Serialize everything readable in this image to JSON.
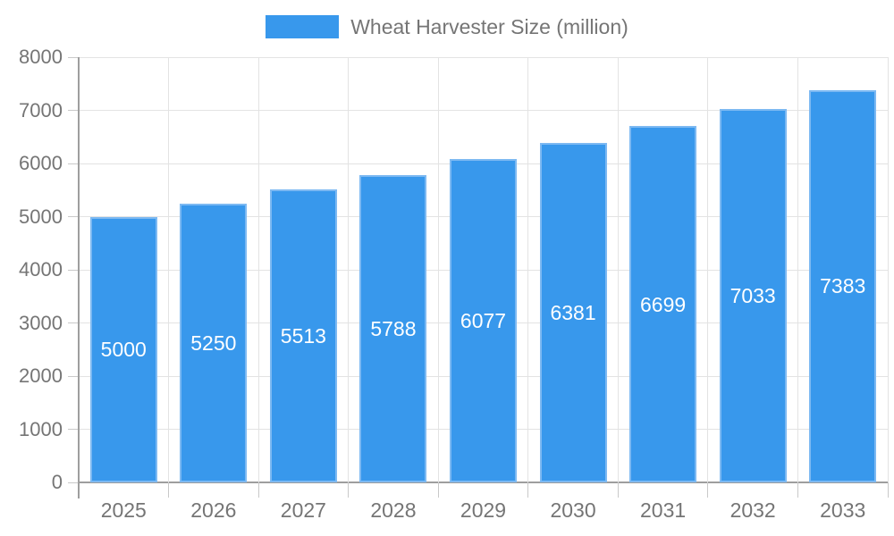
{
  "chart_data": {
    "type": "bar",
    "title": "",
    "legend": {
      "position": "top",
      "label": "Wheat Harvester Size (million)"
    },
    "categories": [
      "2025",
      "2026",
      "2027",
      "2028",
      "2029",
      "2030",
      "2031",
      "2032",
      "2033"
    ],
    "values": [
      5000,
      5250,
      5513,
      5788,
      6077,
      6381,
      6699,
      7033,
      7383
    ],
    "xlabel": "",
    "ylabel": "",
    "ylim": [
      0,
      8000
    ],
    "yticks": [
      0,
      1000,
      2000,
      3000,
      4000,
      5000,
      6000,
      7000,
      8000
    ],
    "grid": true,
    "value_label_position": "inside-center"
  },
  "colors": {
    "bar_fill": "#3898EC",
    "bar_border": "#7DB9F2",
    "grid": "#E3E3E3",
    "axis": "#9E9E9E",
    "tick": "#C9C9C9",
    "text": "#757575",
    "value_text": "#FFFFFF",
    "background": "#FFFFFF"
  }
}
